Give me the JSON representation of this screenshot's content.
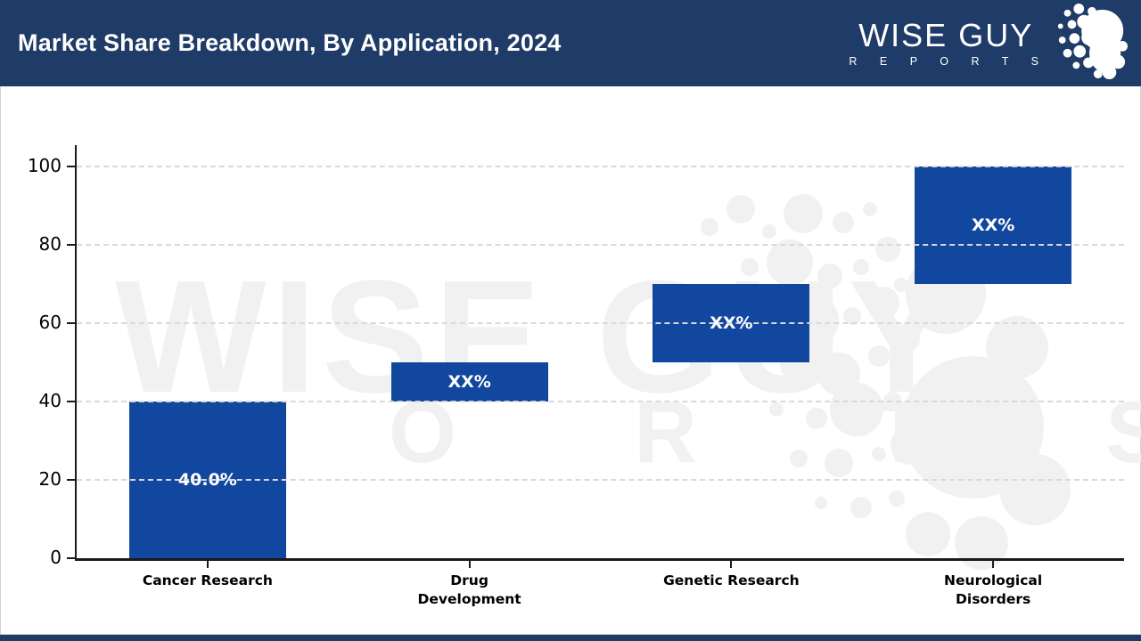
{
  "header": {
    "title": "Market Share Breakdown, By Application, 2024",
    "logo": {
      "name": "WISE GUY",
      "sub": "R E P O R T S"
    }
  },
  "watermark": {
    "line1": "WISE GUY",
    "line2": "P O R T S"
  },
  "colors": {
    "header_bg": "#1f3b67",
    "bar_blue": "#11479e",
    "grid_gray": "#d9d9d9",
    "axis_black": "#1a1a1a",
    "watermark_gray": "#f1f1f1"
  },
  "chart_data": {
    "type": "bar",
    "subtype": "waterfall",
    "title": "Market Share Breakdown, By Application, 2024",
    "xlabel": "",
    "ylabel": "",
    "categories": [
      "Cancer Research",
      "Drug Development",
      "Genetic Research",
      "Neurological Disorders"
    ],
    "segments": [
      {
        "category": "Cancer Research",
        "start": 0,
        "end": 40,
        "label": "40.0%"
      },
      {
        "category": "Drug Development",
        "start": 40,
        "end": 50,
        "label": "XX%"
      },
      {
        "category": "Genetic Research",
        "start": 50,
        "end": 70,
        "label": "XX%"
      },
      {
        "category": "Neurological Disorders",
        "start": 70,
        "end": 100,
        "label": "XX%"
      }
    ],
    "yticks": [
      0,
      20,
      40,
      60,
      80,
      100
    ],
    "ylim": [
      0,
      105
    ],
    "grid": "horizontal-dashed",
    "legend": "none",
    "bar_color": "#11479e",
    "bar_label_color": "#ffffff"
  }
}
